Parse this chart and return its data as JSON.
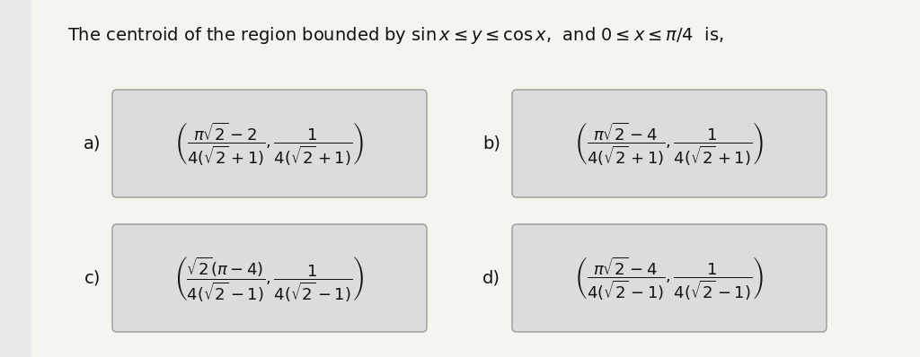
{
  "background_color": "#e8e8e8",
  "panel_color": "#f0f0f0",
  "title_text": "The centroid of the region bounded by $\\sin x \\leq y \\leq \\cos x$,  and $0 \\leq x \\leq \\pi/4$  is,",
  "title_fontsize": 14,
  "options": [
    {
      "label": "a)",
      "expr": "$\\left(\\dfrac{\\pi\\sqrt{2}-2}{4(\\sqrt{2}+1)},\\dfrac{1}{4(\\sqrt{2}+1)}\\right)$"
    },
    {
      "label": "b)",
      "expr": "$\\left(\\dfrac{\\pi\\sqrt{2}-4}{4(\\sqrt{2}+1)},\\dfrac{1}{4(\\sqrt{2}+1)}\\right)$"
    },
    {
      "label": "c)",
      "expr": "$\\left(\\dfrac{\\sqrt{2}(\\pi-4)}{4(\\sqrt{2}-1)},\\dfrac{1}{4(\\sqrt{2}-1)}\\right)$"
    },
    {
      "label": "d)",
      "expr": "$\\left(\\dfrac{\\pi\\sqrt{2}-4}{4(\\sqrt{2}-1)},\\dfrac{1}{4(\\sqrt{2}-1)}\\right)$"
    }
  ],
  "box_facecolor": "#dcdcdc",
  "box_edgecolor": "#999999",
  "text_color": "#111111",
  "label_fontsize": 14,
  "expr_fontsize": 13
}
